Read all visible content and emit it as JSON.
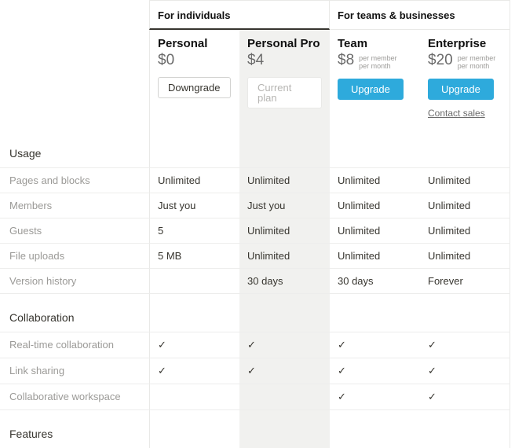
{
  "headers": {
    "individuals": "For individuals",
    "teams": "For teams & businesses"
  },
  "plans": {
    "personal": {
      "name": "Personal",
      "price": "$0",
      "note": "",
      "btn": "Downgrade",
      "btnClass": "btn-outline"
    },
    "pro": {
      "name": "Personal Pro",
      "price": "$4",
      "note": "",
      "btn": "Current plan",
      "btnClass": "btn-current"
    },
    "team": {
      "name": "Team",
      "price": "$8",
      "note1": "per member",
      "note2": "per month",
      "btn": "Upgrade",
      "btnClass": "btn-primary"
    },
    "enterprise": {
      "name": "Enterprise",
      "price": "$20",
      "note1": "per member",
      "note2": "per month",
      "btn": "Upgrade",
      "btnClass": "btn-primary",
      "contact": "Contact sales"
    }
  },
  "sections": {
    "usage": "Usage",
    "collab": "Collaboration",
    "features": "Features"
  },
  "rows": {
    "pages": {
      "label": "Pages and blocks",
      "v": [
        "Unlimited",
        "Unlimited",
        "Unlimited",
        "Unlimited"
      ]
    },
    "members": {
      "label": "Members",
      "v": [
        "Just you",
        "Just you",
        "Unlimited",
        "Unlimited"
      ]
    },
    "guests": {
      "label": "Guests",
      "v": [
        "5",
        "Unlimited",
        "Unlimited",
        "Unlimited"
      ]
    },
    "uploads": {
      "label": "File uploads",
      "v": [
        "5 MB",
        "Unlimited",
        "Unlimited",
        "Unlimited"
      ]
    },
    "history": {
      "label": "Version history",
      "v": [
        "",
        "30 days",
        "30 days",
        "Forever"
      ]
    },
    "rtc": {
      "label": "Real-time collaboration",
      "v": [
        "✓",
        "✓",
        "✓",
        "✓"
      ]
    },
    "link": {
      "label": "Link sharing",
      "v": [
        "✓",
        "✓",
        "✓",
        "✓"
      ]
    },
    "ws": {
      "label": "Collaborative workspace",
      "v": [
        "",
        "",
        "✓",
        "✓"
      ]
    }
  }
}
